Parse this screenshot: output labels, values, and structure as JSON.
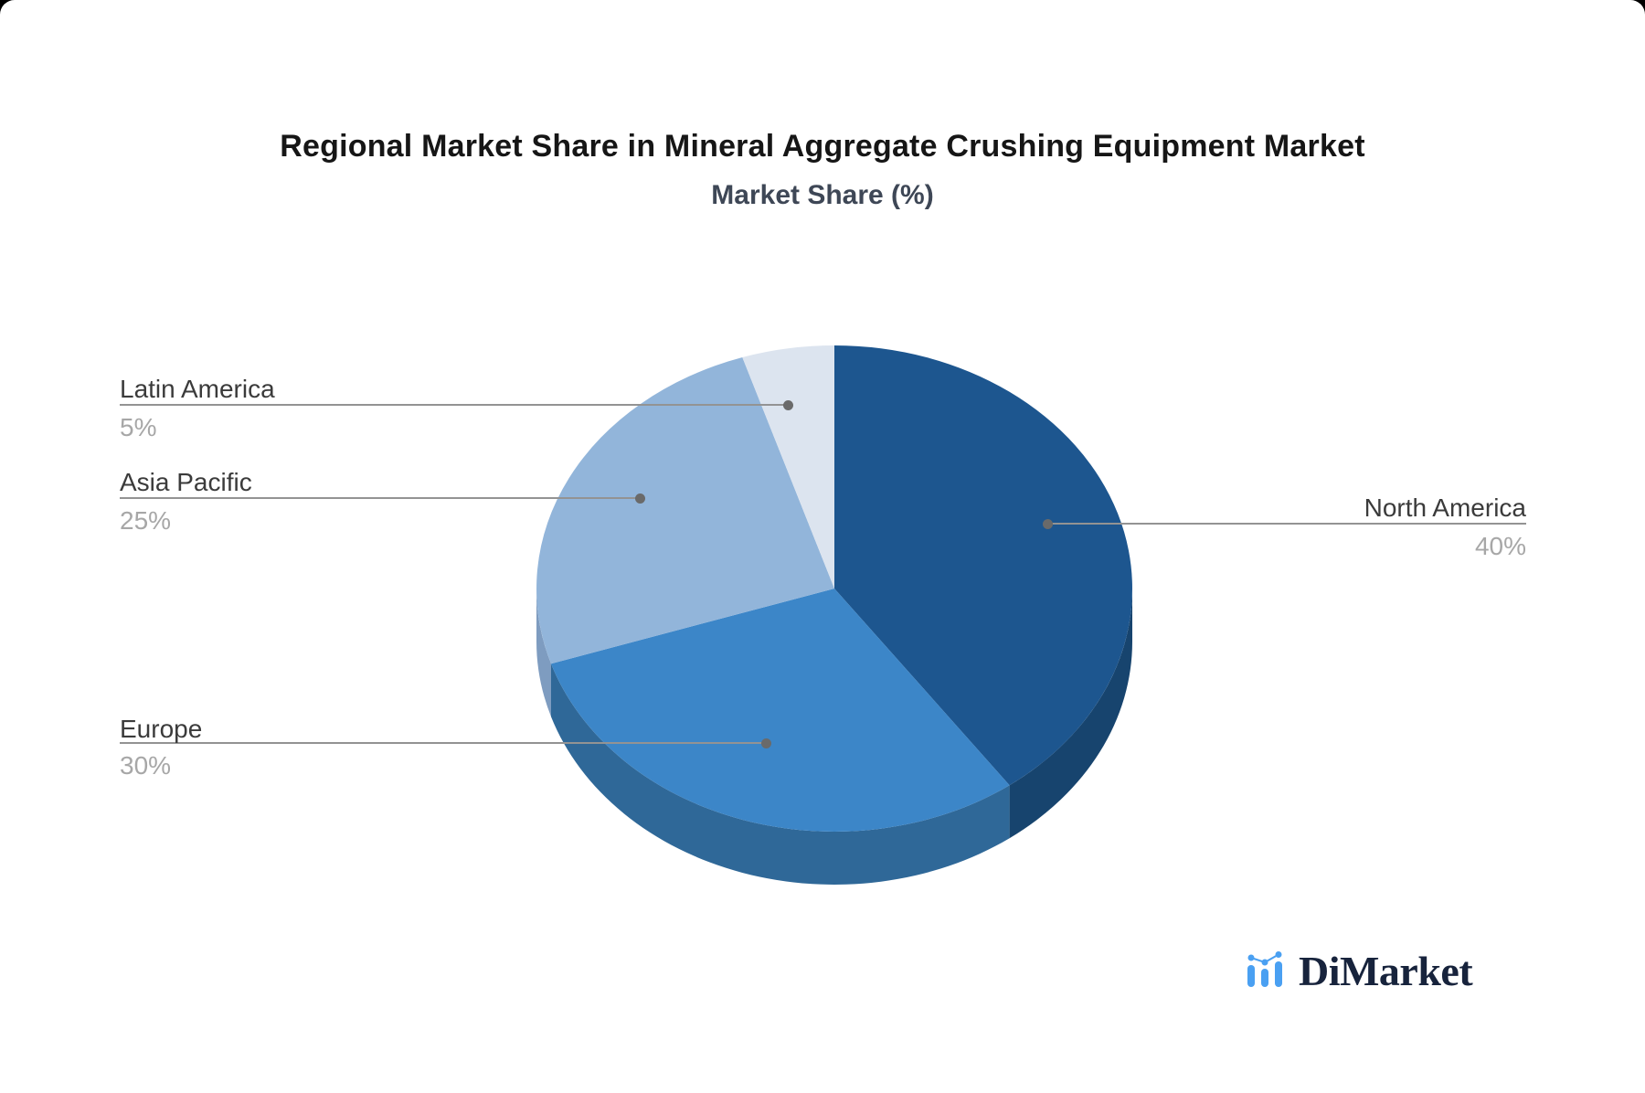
{
  "page": {
    "title": "Regional Market Share in Mineral Aggregate Crushing Equipment Market",
    "subtitle": "Market Share (%)"
  },
  "chart_data": {
    "type": "pie",
    "title": "Regional Market Share in Mineral Aggregate Crushing Equipment Market",
    "subtitle": "Market Share (%)",
    "unit": "%",
    "effect_3d": true,
    "start_angle_deg": -90,
    "direction": "clockwise",
    "categories": [
      "North America",
      "Europe",
      "Asia Pacific",
      "Latin America"
    ],
    "values": [
      40,
      30,
      25,
      5
    ],
    "slices": [
      {
        "id": "north-america",
        "label": "North America",
        "value": 40,
        "display": "40%",
        "color": "#1d568f",
        "side_color": "#17446e",
        "label_side": "right"
      },
      {
        "id": "europe",
        "label": "Europe",
        "value": 30,
        "display": "30%",
        "color": "#3c86c8",
        "side_color": "#2f6898",
        "label_side": "left"
      },
      {
        "id": "asia-pacific",
        "label": "Asia Pacific",
        "value": 25,
        "display": "25%",
        "color": "#92b5da",
        "side_color": "#7e9cc0",
        "label_side": "left"
      },
      {
        "id": "latin-america",
        "label": "Latin America",
        "value": 5,
        "display": "5%",
        "color": "#dce4ef",
        "side_color": "#c2cede",
        "label_side": "left"
      }
    ],
    "legend": "none",
    "leader_line_color": "#939393",
    "label_color": "#3b3b3b",
    "percent_color": "#a7a7a7"
  },
  "branding": {
    "name": "DiMarket",
    "icon": "bar-line-chart-icon",
    "text_color": "#17233c",
    "icon_color": "#4aa0f2"
  }
}
